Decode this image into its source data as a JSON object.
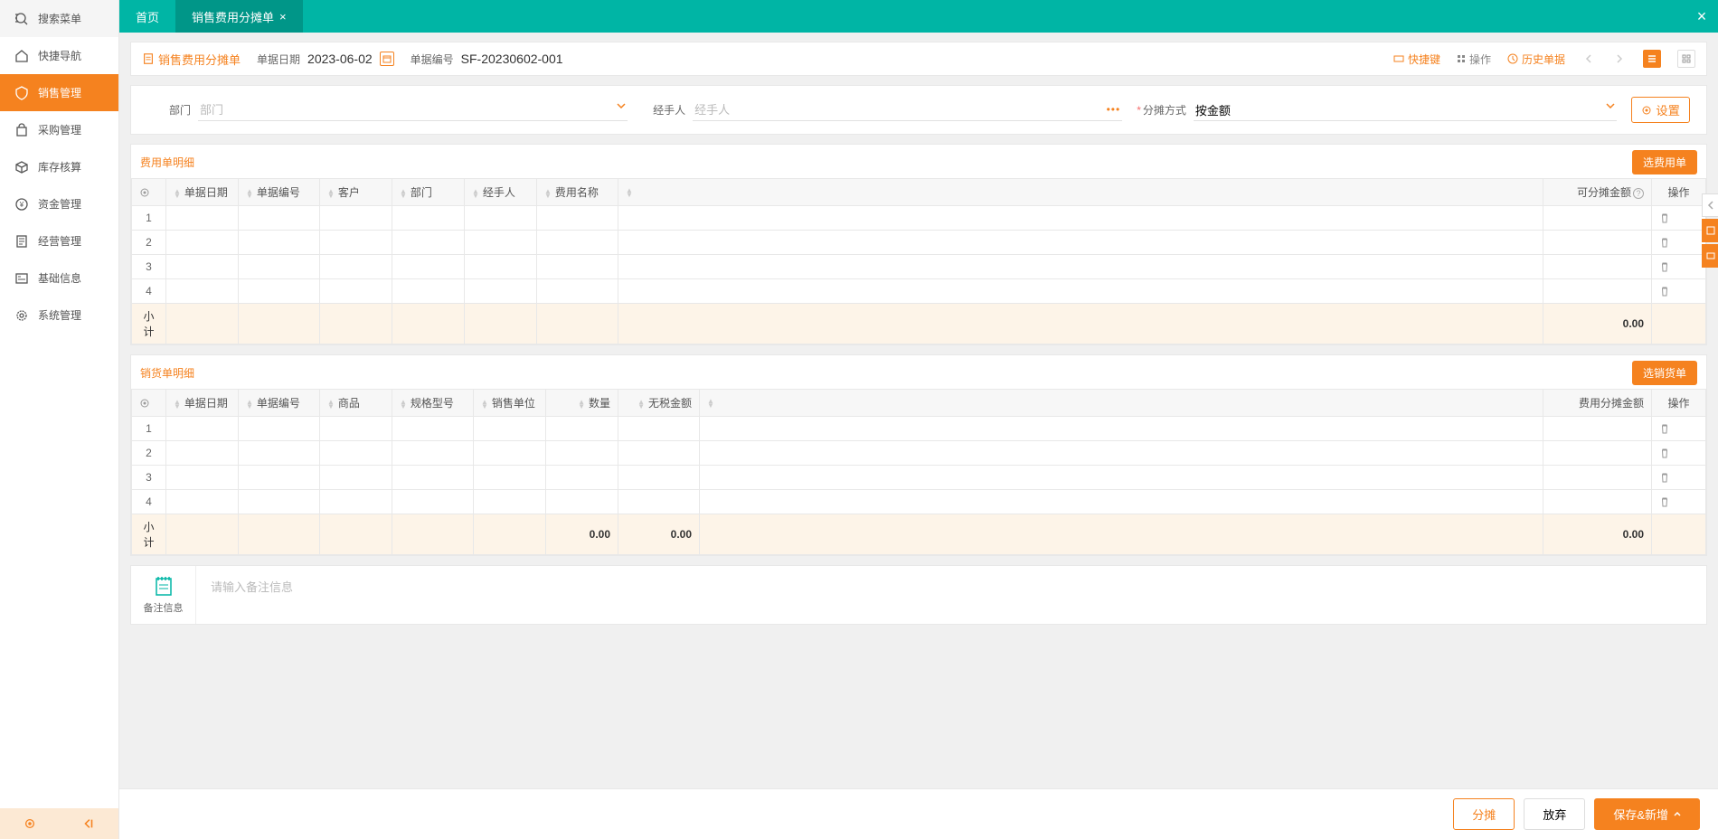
{
  "sidebar": {
    "items": [
      {
        "label": "搜索菜单",
        "icon": "search"
      },
      {
        "label": "快捷导航",
        "icon": "home"
      },
      {
        "label": "销售管理",
        "icon": "badge"
      },
      {
        "label": "采购管理",
        "icon": "bag"
      },
      {
        "label": "库存核算",
        "icon": "box"
      },
      {
        "label": "资金管理",
        "icon": "money"
      },
      {
        "label": "经营管理",
        "icon": "doc"
      },
      {
        "label": "基础信息",
        "icon": "info"
      },
      {
        "label": "系统管理",
        "icon": "gear"
      }
    ],
    "active_index": 2
  },
  "tabs": {
    "items": [
      {
        "label": "首页",
        "closable": false
      },
      {
        "label": "销售费用分摊单",
        "closable": true
      }
    ],
    "active_index": 1
  },
  "header": {
    "doc_title": "销售费用分摊单",
    "date_label": "单据日期",
    "date_value": "2023-06-02",
    "number_label": "单据编号",
    "number_value": "SF-20230602-001",
    "links": {
      "shortcut": "快捷键",
      "operate": "操作",
      "history": "历史单据"
    }
  },
  "form": {
    "dept_label": "部门",
    "dept_placeholder": "部门",
    "handler_label": "经手人",
    "handler_placeholder": "经手人",
    "method_label": "分摊方式",
    "method_value": "按金额",
    "settings_label": "设置"
  },
  "table1": {
    "title": "费用单明细",
    "select_btn": "选费用单",
    "columns": [
      "单据日期",
      "单据编号",
      "客户",
      "部门",
      "经手人",
      "费用名称",
      "可分摊金额"
    ],
    "action_header": "操作",
    "help_col_index": 6,
    "row_count": 4,
    "subtotal_label": "小计",
    "subtotal_amount": "0.00"
  },
  "table2": {
    "title": "销货单明细",
    "select_btn": "选销货单",
    "columns": [
      "单据日期",
      "单据编号",
      "商品",
      "规格型号",
      "销售单位",
      "数量",
      "无税金额",
      "费用分摊金额"
    ],
    "action_header": "操作",
    "right_align_from": 5,
    "row_count": 4,
    "subtotal_label": "小计",
    "subtotal_qty": "0.00",
    "subtotal_notax": "0.00",
    "subtotal_amount": "0.00"
  },
  "notes": {
    "label": "备注信息",
    "placeholder": "请输入备注信息"
  },
  "footer": {
    "allocate": "分摊",
    "discard": "放弃",
    "save_new": "保存&新增"
  },
  "colors": {
    "primary": "#f5821f",
    "teal": "#00b5a5",
    "teal_dark": "#009688"
  }
}
